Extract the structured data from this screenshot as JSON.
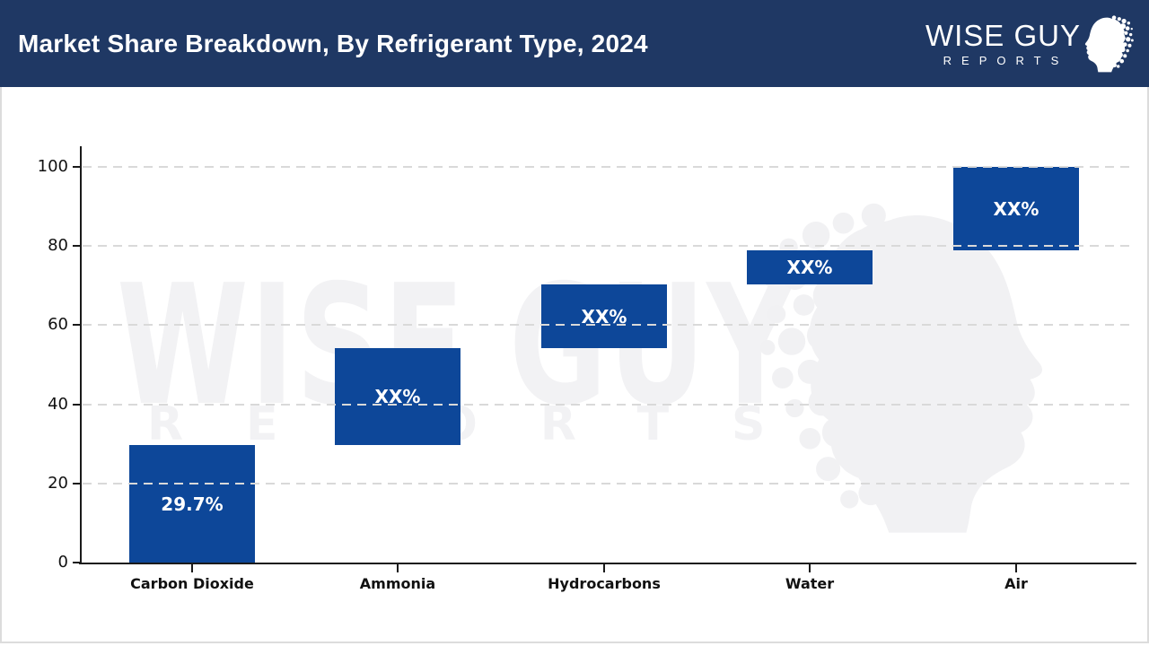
{
  "header": {
    "title": "Market Share Breakdown, By Refrigerant Type, 2024",
    "logo": {
      "line1": "WISE GUY",
      "line2": "REPORTS"
    }
  },
  "watermark": {
    "line1": "WISE GUY",
    "line2": "REPORTS"
  },
  "colors": {
    "header_bg": "#1f3864",
    "bar": "#0d4799",
    "gridline": "#d9d9d9",
    "watermark": "#f2f2f4"
  },
  "chart_data": {
    "type": "bar",
    "subtype": "waterfall",
    "title": "Market Share Breakdown, By Refrigerant Type, 2024",
    "categories": [
      "Carbon Dioxide",
      "Ammonia",
      "Hydrocarbons",
      "Water",
      "Air"
    ],
    "segments": [
      {
        "category": "Carbon Dioxide",
        "start": 0,
        "end": 29.7,
        "label": "29.7%"
      },
      {
        "category": "Ammonia",
        "start": 29.7,
        "end": 54.2,
        "label": "XX%"
      },
      {
        "category": "Hydrocarbons",
        "start": 54.2,
        "end": 70.2,
        "label": "XX%"
      },
      {
        "category": "Water",
        "start": 70.2,
        "end": 78.9,
        "label": "XX%"
      },
      {
        "category": "Air",
        "start": 78.9,
        "end": 100,
        "label": "XX%"
      }
    ],
    "xlabel": "",
    "ylabel": "",
    "yticks": [
      0,
      20,
      40,
      60,
      80,
      100
    ],
    "ylim": [
      0,
      105
    ],
    "grid": "horizontal-dashed",
    "legend": "none",
    "value_note": "only first segment value shown; others masked as XX%"
  }
}
